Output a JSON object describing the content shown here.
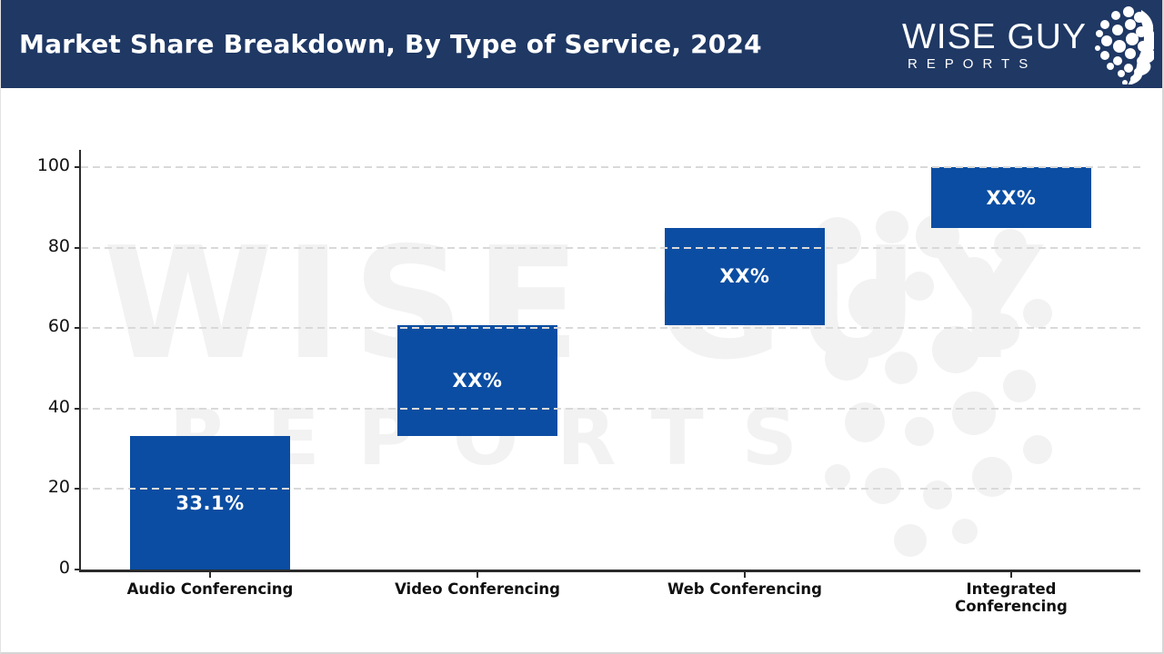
{
  "header": {
    "title": "Market Share Breakdown, By Type of Service, 2024",
    "logo": {
      "line1": "WISE GUY",
      "line2": "REPORTS"
    }
  },
  "watermark": {
    "line1": "WISE GUY",
    "line2": "REPORTS"
  },
  "colors": {
    "header_bg": "#1f3864",
    "bar_blue": "#0b4da2",
    "gridline_gray": "#d9d9d9",
    "axis_dark": "#2b2b2b",
    "tick_text": "#111111",
    "bar_label_white": "#ffffff",
    "watermark_gray": "#f2f2f2"
  },
  "chart_data": {
    "type": "bar",
    "subtype": "floating-waterfall",
    "title": "Market Share Breakdown, By Type of Service, 2024",
    "xlabel": "",
    "ylabel": "",
    "categories": [
      "Audio Conferencing",
      "Video Conferencing",
      "Web Conferencing",
      "Integrated Conferencing"
    ],
    "segments": [
      {
        "category": "Audio Conferencing",
        "start": 0,
        "end": 33.1,
        "label": "33.1%"
      },
      {
        "category": "Video Conferencing",
        "start": 33.1,
        "end": 60.8,
        "label": "XX%"
      },
      {
        "category": "Web Conferencing",
        "start": 60.8,
        "end": 84.8,
        "label": "XX%"
      },
      {
        "category": "Integrated Conferencing",
        "start": 84.8,
        "end": 100,
        "label": "XX%"
      }
    ],
    "y_ticks": [
      0,
      20,
      40,
      60,
      80,
      100
    ],
    "ylim": [
      0,
      105
    ],
    "grid": "horizontal-dashed",
    "legend": "none",
    "bar_color": "#0b4da2",
    "grid_color": "#d9d9d9",
    "value_label_color": "#ffffff"
  }
}
